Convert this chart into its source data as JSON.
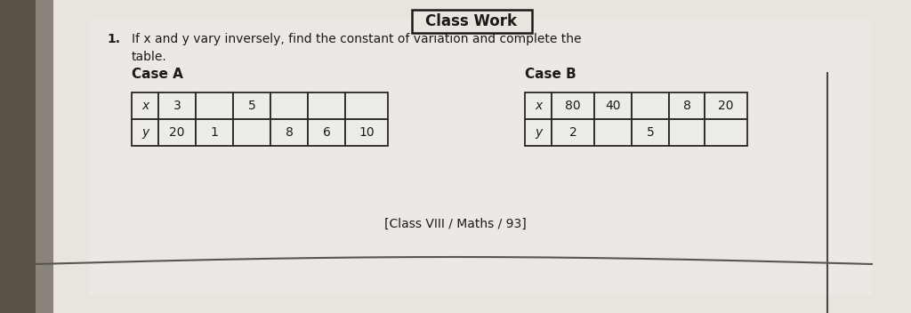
{
  "title": "Class Work",
  "number": "1.",
  "line1": "If x and y vary inversely, find the constant of variation and complete the",
  "line2": "table.",
  "case_a_label": "Case A",
  "case_b_label": "Case B",
  "case_a_rows": [
    [
      "x",
      "3",
      "",
      "5",
      "",
      "",
      ""
    ],
    [
      "y",
      "20",
      "1",
      "",
      "8",
      "6",
      "10"
    ]
  ],
  "case_b_rows": [
    [
      "x",
      "80",
      "40",
      "",
      "8",
      "20"
    ],
    [
      "y",
      "2",
      "",
      "5",
      "",
      ""
    ]
  ],
  "footer": "[Class VIII / Maths / 93]",
  "bg_light": "#d8d5ce",
  "bg_page": "#e8e5df",
  "bg_white": "#f0eeea",
  "spine_color": "#3a3530",
  "text_dark": "#1c1a18",
  "table_border": "#2a2825",
  "table_fill": "#eeece8"
}
